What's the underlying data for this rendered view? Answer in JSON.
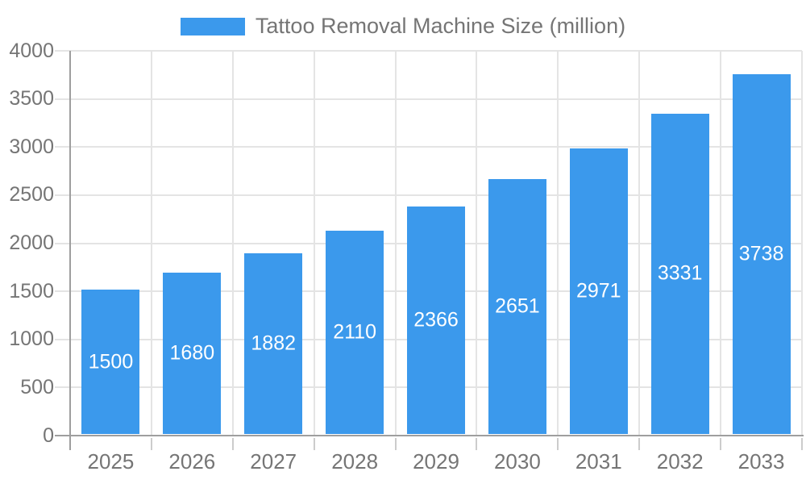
{
  "legend": {
    "label": "Tattoo Removal Machine Size (million)",
    "swatch_icon": "legend-swatch-icon"
  },
  "chart_data": {
    "type": "bar",
    "title": "Tattoo Removal Machine Size (million)",
    "categories": [
      "2025",
      "2026",
      "2027",
      "2028",
      "2029",
      "2030",
      "2031",
      "2032",
      "2033"
    ],
    "values": [
      1500,
      1680,
      1882,
      2110,
      2366,
      2651,
      2971,
      3331,
      3738
    ],
    "series_name": "Tattoo Removal Machine Size (million)",
    "xlabel": "",
    "ylabel": "",
    "ylim": [
      0,
      4000
    ],
    "ytick_step": 500,
    "ytick_labels": [
      "0",
      "500",
      "1000",
      "1500",
      "2000",
      "2500",
      "3000",
      "3500",
      "4000"
    ],
    "grid": true,
    "legend_position": "top-center",
    "value_labels": "inside-center-white",
    "bar_color": "#3B99EC",
    "value_label_color": "#ffffff",
    "axis_text_color": "#757575",
    "grid_color": "#e4e4e4",
    "axis_line_color": "#9e9e9e",
    "tick_color": "#cccccc",
    "background_color": "#ffffff"
  }
}
